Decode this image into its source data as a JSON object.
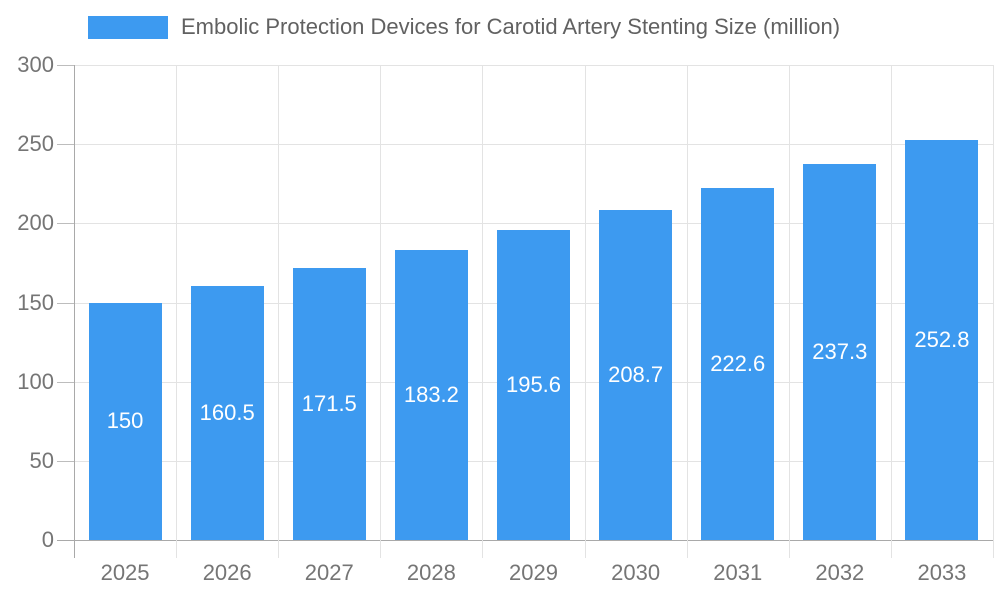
{
  "chart_data": {
    "type": "bar",
    "title": "Embolic Protection Devices for Carotid Artery Stenting Size (million)",
    "categories": [
      "2025",
      "2026",
      "2027",
      "2028",
      "2029",
      "2030",
      "2031",
      "2032",
      "2033"
    ],
    "values": [
      150,
      160.5,
      171.5,
      183.2,
      195.6,
      208.7,
      222.6,
      237.3,
      252.8
    ],
    "value_labels": [
      "150",
      "160.5",
      "171.5",
      "183.2",
      "195.6",
      "208.7",
      "222.6",
      "237.3",
      "252.8"
    ],
    "xlabel": "",
    "ylabel": "",
    "ylim": [
      0,
      300
    ],
    "yticks": [
      0,
      50,
      100,
      150,
      200,
      250,
      300
    ],
    "grid": true,
    "legend_position": "top-left",
    "bar_color": "#3d9af0",
    "bar_label_color": "#ffffff",
    "axis_text_color": "#757575",
    "title_text_color": "#616161",
    "grid_color": "#e3e3e3",
    "axis_line_color": "#a9a9a9",
    "tick_color": "#bdbdbd"
  }
}
